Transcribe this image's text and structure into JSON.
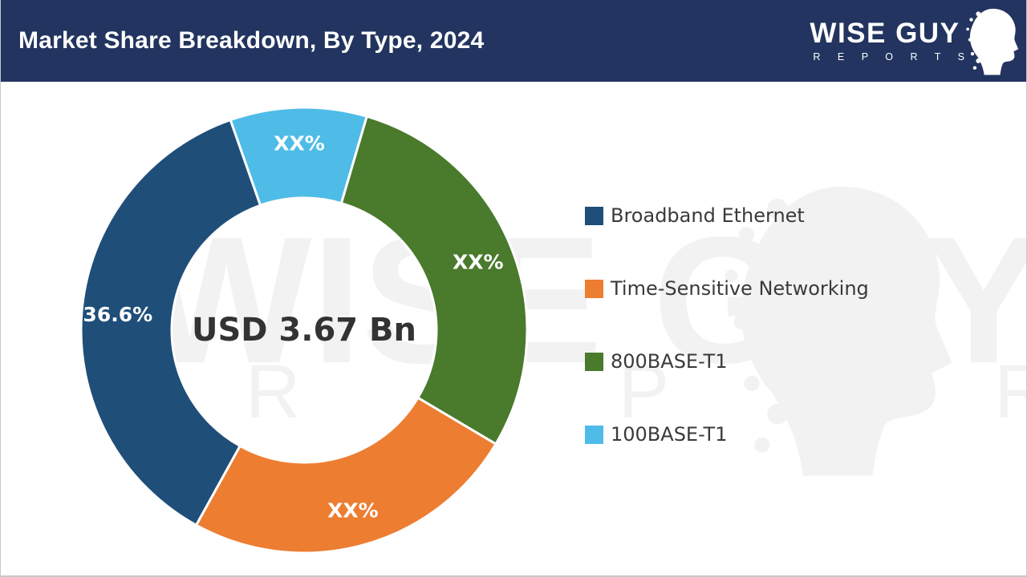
{
  "header": {
    "title": "Market Share Breakdown, By Type, 2024",
    "logo": {
      "line1": "WISE GUY",
      "line2": "R E P O R T S"
    }
  },
  "watermark": {
    "line1": "WISE GUY",
    "line2": "R E P O R T S"
  },
  "chart_data": {
    "type": "donut",
    "title": "Market Share Breakdown, By Type, 2024",
    "center_label": "USD 3.67 Bn",
    "start_angle_deg": -19.3,
    "legend_position": "right",
    "segments": [
      {
        "name": "100BASE-T1",
        "label": "XX%",
        "value_pct": 9.9,
        "color": "#4FBCE8"
      },
      {
        "name": "800BASE-T1",
        "label": "XX%",
        "value_pct": 29.0,
        "color": "#4A7A2C"
      },
      {
        "name": "Time-Sensitive Networking",
        "label": "XX%",
        "value_pct": 24.5,
        "color": "#ED7D31"
      },
      {
        "name": "Broadband Ethernet",
        "label": "36.6%",
        "value_pct": 36.6,
        "color": "#1F4E79"
      }
    ],
    "legend": [
      {
        "label": "Broadband Ethernet",
        "color": "#1F4E79"
      },
      {
        "label": "Time-Sensitive Networking",
        "color": "#ED7D31"
      },
      {
        "label": "800BASE-T1",
        "color": "#4A7A2C"
      },
      {
        "label": "100BASE-T1",
        "color": "#4FBCE8"
      }
    ]
  },
  "colors": {
    "header_bg": "#22345F",
    "content_border": "#C9C9C9",
    "center_text": "#333333",
    "legend_text": "#3A3A3A",
    "watermark": "#F2F2F2"
  }
}
